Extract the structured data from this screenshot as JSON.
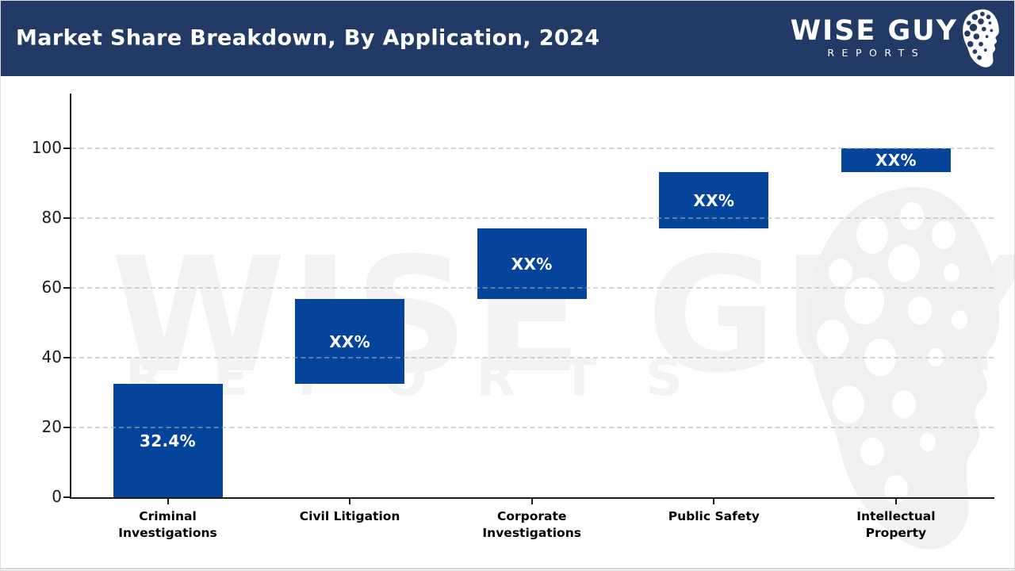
{
  "header": {
    "title": "Market Share Breakdown, By Application, 2024",
    "logo": {
      "brand_top": "WISE GUY",
      "brand_bottom": "REPORTS"
    }
  },
  "watermark": {
    "text_top": "WISE GUY",
    "text_bottom": "REPORTS"
  },
  "colors": {
    "header_bg": "#223a66",
    "bar_fill": "#05449b",
    "bar_label_text": "#ffffff",
    "axis": "#1a1a1a",
    "gridline": "#d9d9d9",
    "watermark": "#f2f2f4"
  },
  "chart_data": {
    "type": "bar",
    "subtype": "waterfall",
    "title": "Market Share Breakdown, By Application, 2024",
    "xlabel": "",
    "ylabel": "",
    "ylim": [
      0,
      100
    ],
    "y_ticks": [
      0,
      20,
      40,
      60,
      80,
      100
    ],
    "grid": "horizontal dashed",
    "legend": "none",
    "categories": [
      "Criminal Investigations",
      "Civil Litigation",
      "Corporate Investigations",
      "Public Safety",
      "Intellectual Property"
    ],
    "segments": [
      {
        "category": "Criminal Investigations",
        "category_lines": [
          "Criminal",
          "Investigations"
        ],
        "start": 0,
        "end": 32.4,
        "value": 32.4,
        "label": "32.4%"
      },
      {
        "category": "Civil Litigation",
        "category_lines": [
          "Civil Litigation"
        ],
        "start": 32.4,
        "end": 56.8,
        "value": 24.4,
        "label": "XX%"
      },
      {
        "category": "Corporate Investigations",
        "category_lines": [
          "Corporate",
          "Investigations"
        ],
        "start": 56.8,
        "end": 77.0,
        "value": 20.2,
        "label": "XX%"
      },
      {
        "category": "Public Safety",
        "category_lines": [
          "Public Safety"
        ],
        "start": 77.0,
        "end": 93.2,
        "value": 16.2,
        "label": "XX%"
      },
      {
        "category": "Intellectual Property",
        "category_lines": [
          "Intellectual",
          "Property"
        ],
        "start": 93.2,
        "end": 100,
        "value": 6.8,
        "label": "XX%"
      }
    ]
  }
}
